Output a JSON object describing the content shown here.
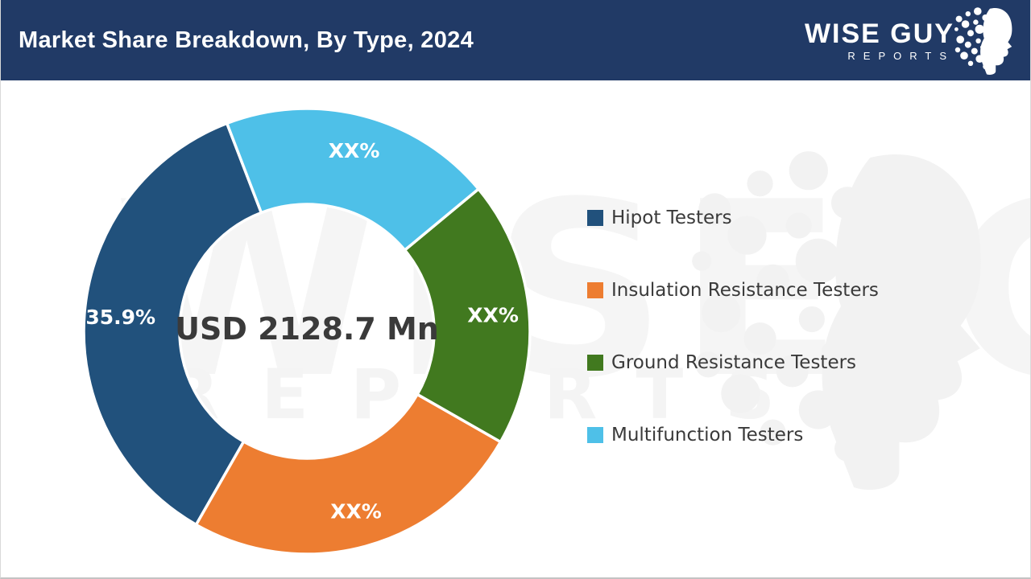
{
  "header": {
    "title": "Market Share Breakdown, By Type, 2024",
    "logo": {
      "line1": "WISE GUY",
      "line2": "REPORTS"
    }
  },
  "watermark": {
    "line1": "WISE GUY",
    "line2": "REPORTS"
  },
  "chart_data": {
    "type": "donut",
    "title": "Market Share Breakdown, By Type, 2024",
    "center_label": "USD 2128.7 Mn",
    "start_angle_deg": 111,
    "direction": "counterclockwise",
    "label_color": "#ffffff",
    "legend_position": "right",
    "segments": [
      {
        "name": "Hipot Testers",
        "display_label": "35.9%",
        "arc_pct_estimated": 35.9,
        "color": "#21517C"
      },
      {
        "name": "Insulation Resistance Testers",
        "display_label": "XX%",
        "arc_pct_estimated": 25.0,
        "color": "#ED7D31"
      },
      {
        "name": "Ground Resistance Testers",
        "display_label": "XX%",
        "arc_pct_estimated": 19.3,
        "color": "#41791F"
      },
      {
        "name": "Multifunction Testers",
        "display_label": "XX%",
        "arc_pct_estimated": 19.8,
        "color": "#4EC0E8"
      }
    ]
  },
  "legend": {
    "items": [
      {
        "label": "Hipot Testers",
        "color": "#21517C"
      },
      {
        "label": "Insulation Resistance Testers",
        "color": "#ED7D31"
      },
      {
        "label": "Ground Resistance Testers",
        "color": "#41791F"
      },
      {
        "label": "Multifunction Testers",
        "color": "#4EC0E8"
      }
    ]
  }
}
